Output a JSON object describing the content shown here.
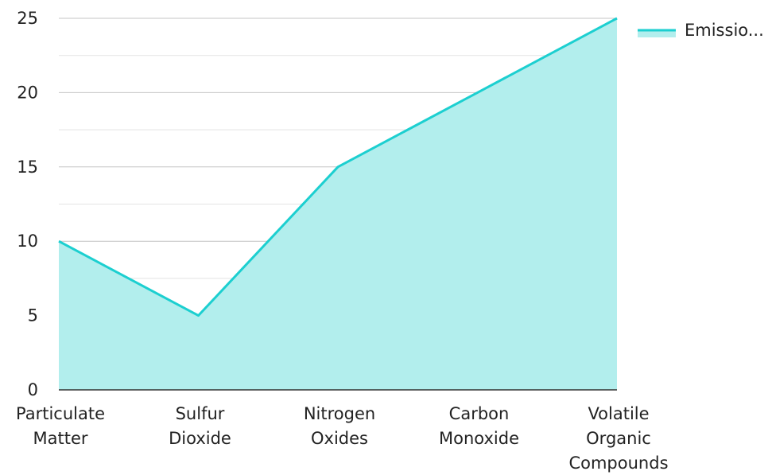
{
  "chart_data": {
    "type": "area",
    "categories": [
      [
        "Particulate",
        "Matter"
      ],
      [
        "Sulfur",
        "Dioxide"
      ],
      [
        "Nitrogen",
        "Oxides"
      ],
      [
        "Carbon",
        "Monoxide"
      ],
      [
        "Volatile",
        "Organic",
        "Compounds"
      ]
    ],
    "series": [
      {
        "name": "Emissio...",
        "values": [
          10,
          5,
          15,
          20,
          25
        ],
        "color": "#1ccfd0",
        "fill": "#b2eeed"
      }
    ],
    "ylim": [
      0,
      25
    ],
    "yticks": [
      "0",
      "5",
      "10",
      "15",
      "20",
      "25"
    ],
    "grid": true,
    "legend_position": "top-right"
  }
}
